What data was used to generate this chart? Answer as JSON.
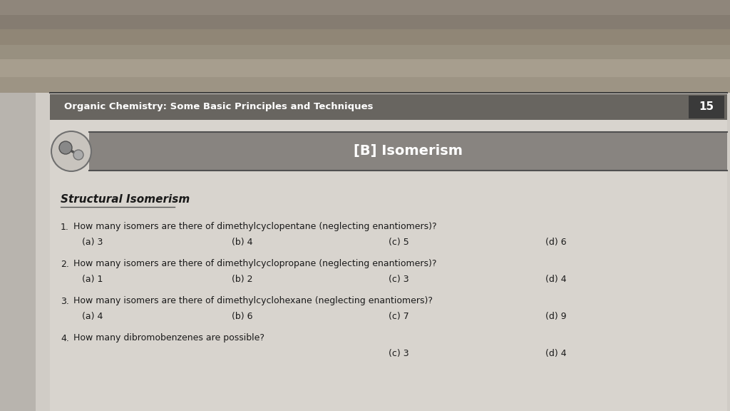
{
  "bg_color_outer": "#b0aca8",
  "bg_color_page": "#d8d4ce",
  "bg_color_inner": "#ccc8c2",
  "top_photo_color": "#9a9088",
  "header_bar_color": "#686560",
  "header_text": "Organic Chemistry: Some Basic Principles and Techniques",
  "header_num": "15",
  "header_num_bg": "#3a3a3a",
  "section_bar_color": "#888480",
  "section_title": "[B] Isomerism",
  "section_title_color": "#ffffff",
  "subsection_title": "Structural Isomerism",
  "questions": [
    {
      "num": "1.",
      "text": "How many isomers are there of dimethylcyclopentane (neglecting enantiomers)?",
      "options": [
        "(a) 3",
        "(b) 4",
        "(c) 5",
        "(d) 6"
      ]
    },
    {
      "num": "2.",
      "text": "How many isomers are there of dimethylcyclopropane (neglecting enantiomers)?",
      "options": [
        "(a) 1",
        "(b) 2",
        "(c) 3",
        "(d) 4"
      ]
    },
    {
      "num": "3.",
      "text": "How many isomers are there of dimethylcyclohexane (neglecting enantiomers)?",
      "options": [
        "(a) 4",
        "(b) 6",
        "(c) 7",
        "(d) 9"
      ]
    },
    {
      "num": "4.",
      "text": "How many dibromobenzenes are possible?",
      "options": [
        "",
        "",
        "(c) 3",
        "(d) 4"
      ]
    }
  ],
  "text_color": "#1a1a1a",
  "figwidth": 10.24,
  "figheight": 5.76,
  "dpi": 100
}
